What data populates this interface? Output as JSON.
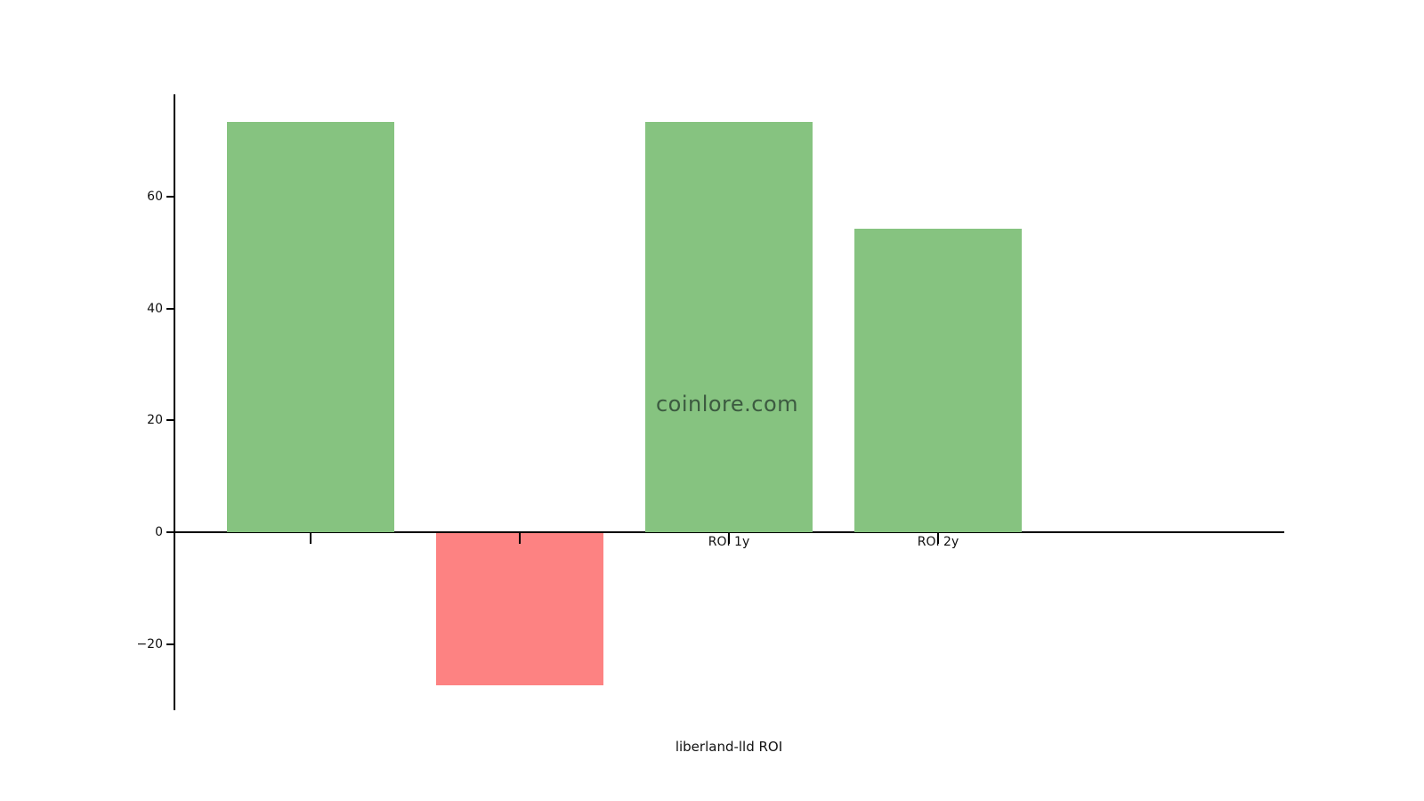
{
  "page": {
    "background": "#ffffff"
  },
  "chart_data": {
    "type": "bar",
    "title": "liberland-lld ROI",
    "watermark": "coinlore.com",
    "categories": [
      "",
      "",
      "ROI 1y",
      "ROI 2y"
    ],
    "values": [
      73.2,
      -27.1,
      73.2,
      54.2
    ],
    "bar_colors": [
      "#86c380",
      "#fd8282",
      "#86c380",
      "#86c380"
    ],
    "positive_color": "#86c380",
    "negative_color": "#fd8282",
    "yticks": [
      60,
      40,
      20,
      0,
      -20
    ],
    "ylim": [
      -31.7,
      78.2
    ],
    "xlim_slots": [
      -0.655,
      4.655
    ],
    "xtick_slots": [
      0,
      1,
      2,
      3
    ],
    "bar_width_frac": 0.8,
    "grid": false,
    "legend": false,
    "axis_color": "#000000",
    "text_color": "#111111",
    "watermark_color": "#3c5a40"
  }
}
